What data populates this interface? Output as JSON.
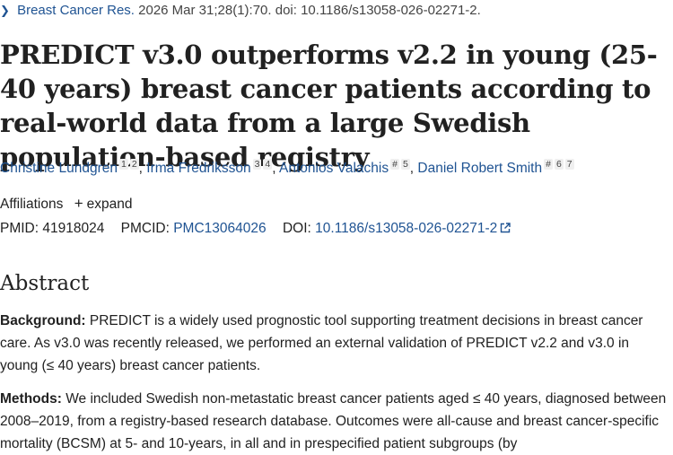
{
  "citation": {
    "journal": "Breast Cancer Res.",
    "rest": "2026 Mar 31;28(1):70. doi: 10.1186/s13058-026-02271-2."
  },
  "article": {
    "title": "PREDICT v3.0 outperforms v2.2 in young (25-40 years) breast cancer patients according to real-world data from a large Swedish population-based registry"
  },
  "authors": [
    {
      "name": "Christine Lundgren",
      "sups": [
        "1",
        "2"
      ]
    },
    {
      "name": "Irma Fredriksson",
      "sups": [
        "3",
        "4"
      ]
    },
    {
      "name": "Antonios Valachis",
      "sups": [
        "#",
        "5"
      ]
    },
    {
      "name": "Daniel Robert Smith",
      "sups": [
        "#",
        "6",
        "7"
      ]
    }
  ],
  "affiliations": {
    "label": "Affiliations",
    "expand": "expand"
  },
  "identifiers": {
    "pmid_label": "PMID:",
    "pmid": "41918024",
    "pmcid_label": "PMCID:",
    "pmcid": "PMC13064026",
    "doi_label": "DOI:",
    "doi": "10.1186/s13058-026-02271-2"
  },
  "abstract": {
    "heading": "Abstract",
    "background_label": "Background:",
    "background_text": " PREDICT is a widely used prognostic tool supporting treatment decisions in breast cancer care. As v3.0 was recently released, we performed an external validation of PREDICT v2.2 and v3.0 in young (≤ 40 years) breast cancer patients.",
    "methods_label": "Methods:",
    "methods_text": " We included Swedish non-metastatic breast cancer patients aged ≤ 40 years, diagnosed between 2008–2019, from a registry-based research database. Outcomes were all-cause and breast cancer-specific mortality (BCSM) at 5- and 10-years, in all and in prespecified patient subgroups (by"
  },
  "colors": {
    "link": "#205493",
    "text": "#212121"
  }
}
